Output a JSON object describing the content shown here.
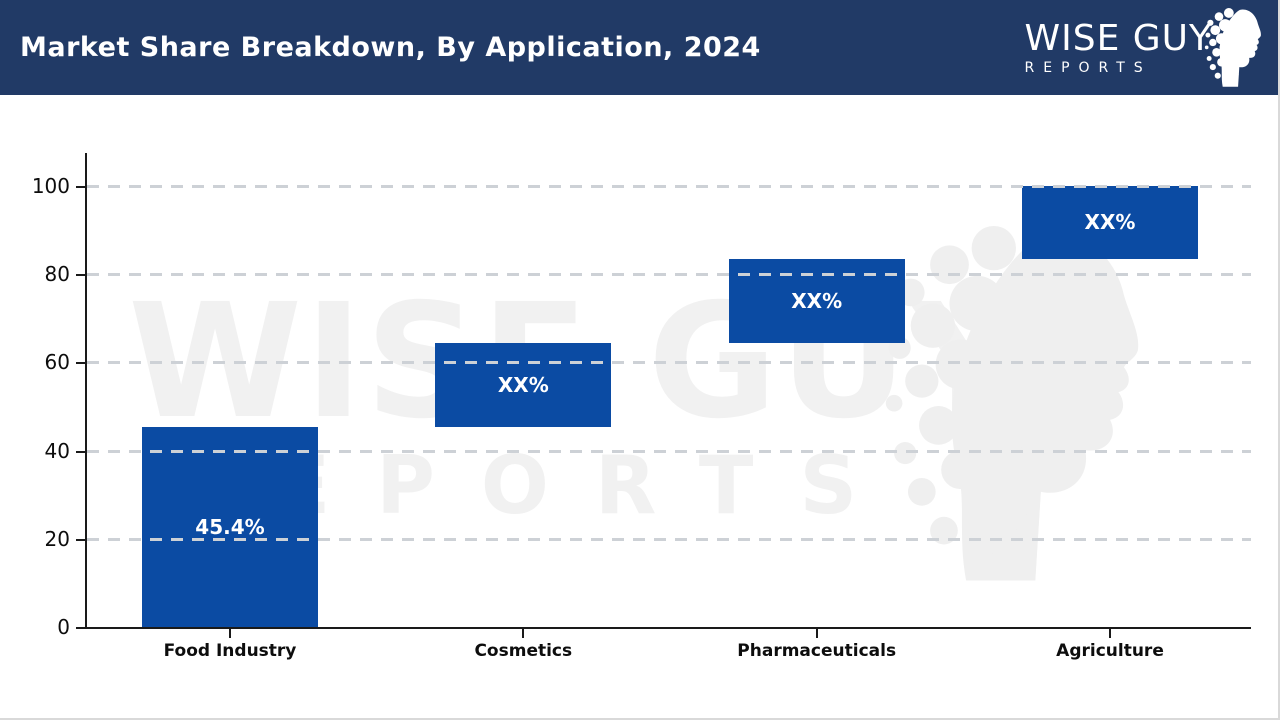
{
  "header": {
    "title": "Market Share Breakdown, By Application, 2024",
    "bg_color": "#213a66",
    "logo": {
      "line1": "WISE GUY",
      "line2": "REPORTS"
    }
  },
  "watermark": {
    "line1": "WISE GUY",
    "line2": "REPORTS"
  },
  "chart_data": {
    "type": "bar",
    "subtype": "waterfall",
    "title": "Market Share Breakdown, By Application, 2024",
    "categories": [
      "Food Industry",
      "Cosmetics",
      "Pharmaceuticals",
      "Agriculture"
    ],
    "segments": [
      {
        "category": "Food Industry",
        "label": "45.4%",
        "start": 0,
        "end": 45.4
      },
      {
        "category": "Cosmetics",
        "label": "XX%",
        "start": 45.4,
        "end": 64.5
      },
      {
        "category": "Pharmaceuticals",
        "label": "XX%",
        "start": 64.5,
        "end": 83.5
      },
      {
        "category": "Agriculture",
        "label": "XX%",
        "start": 83.5,
        "end": 100
      }
    ],
    "yticks": [
      0,
      20,
      40,
      60,
      80,
      100
    ],
    "ylim": [
      0,
      107.5
    ],
    "xlabel": "",
    "ylabel": "",
    "legend": "none",
    "grid": "horizontal-dashed",
    "bar_color": "#0b4ba3",
    "grid_color": "#cdd1d6",
    "axis_color": "#1a1a1a",
    "bar_label_color": "#ffffff"
  }
}
